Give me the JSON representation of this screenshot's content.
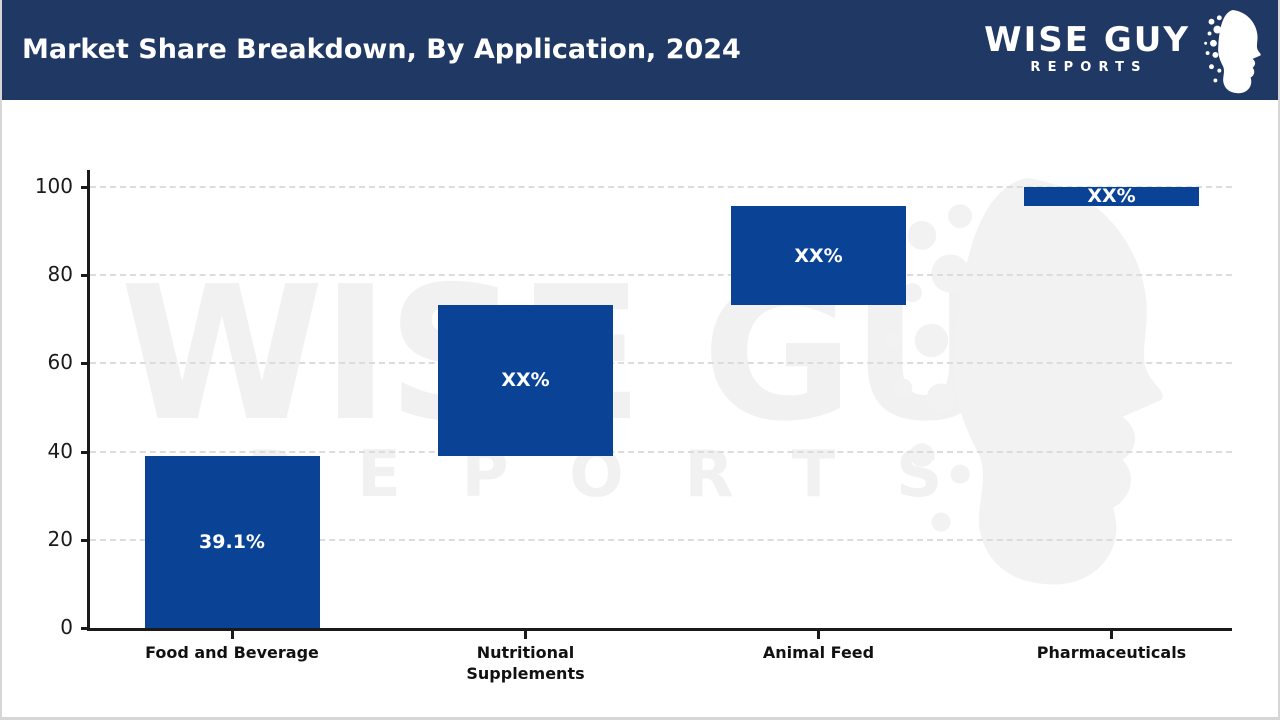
{
  "header": {
    "title": "Market Share Breakdown, By Application, 2024",
    "bg_color": "#203864",
    "logo": {
      "line1": "WISE GUY",
      "line2": "REPORTS"
    }
  },
  "watermark": {
    "line1": "WISE GUY",
    "line2": "REPORTS"
  },
  "chart_data": {
    "type": "bar",
    "subtype": "waterfall",
    "title": "Market Share Breakdown, By Application, 2024",
    "categories": [
      "Food and Beverage",
      "Nutritional Supplements",
      "Animal Feed",
      "Pharmaceuticals"
    ],
    "segments": [
      {
        "category": "Food and Beverage",
        "start": 0,
        "end": 39.1,
        "label": "39.1%"
      },
      {
        "category": "Nutritional Supplements",
        "start": 39.1,
        "end": 73.2,
        "label": "XX%"
      },
      {
        "category": "Animal Feed",
        "start": 73.2,
        "end": 95.7,
        "label": "XX%"
      },
      {
        "category": "Pharmaceuticals",
        "start": 95.7,
        "end": 100,
        "label": "XX%"
      }
    ],
    "yticks": [
      0,
      20,
      40,
      60,
      80,
      100
    ],
    "ylim": [
      0,
      103.5
    ],
    "xlabel": "",
    "ylabel": "",
    "grid": "horizontal-dashed",
    "legend": "none",
    "colors": {
      "bar": "#0a4396",
      "bar_label": "#ffffff",
      "axis": "#1a1a1a",
      "gridline": "#dcdcdc",
      "background": "#ffffff"
    }
  }
}
